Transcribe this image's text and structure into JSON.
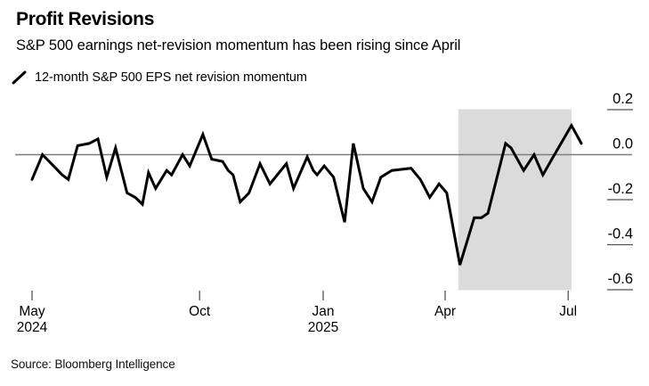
{
  "header": {
    "title": "Profit Revisions",
    "subtitle": "S&P 500 earnings net-revision momentum has been rising since April"
  },
  "legend": {
    "label": "12-month S&P 500 EPS net revision momentum"
  },
  "source": {
    "label": "Source: Bloomberg Intelligence"
  },
  "colors": {
    "background": "#ffffff",
    "line": "#000000",
    "zero_line": "#7d7d7d",
    "band": "#dbdbdb",
    "tick": "#555555",
    "text": "#000000"
  },
  "chart_data": {
    "type": "line",
    "title": "Profit Revisions",
    "xlabel": "",
    "ylabel": "",
    "grid": false,
    "legend_position": "top-left",
    "y_axis": {
      "side": "right",
      "range": [
        -0.65,
        0.25
      ],
      "ticks": [
        {
          "value": 0.2,
          "label": "0.2"
        },
        {
          "value": 0.0,
          "label": "0.0"
        },
        {
          "value": -0.2,
          "label": "-0.2"
        },
        {
          "value": -0.4,
          "label": "-0.4"
        },
        {
          "value": -0.6,
          "label": "-0.6"
        }
      ]
    },
    "x_axis": {
      "unit": "time (weekly, May 2024 - Jul 2025)",
      "ticks": [
        {
          "pos": 0.0,
          "label": "May",
          "year": "2024"
        },
        {
          "pos": 0.305,
          "label": "Oct",
          "year": ""
        },
        {
          "pos": 0.53,
          "label": "Jan",
          "year": "2025"
        },
        {
          "pos": 0.752,
          "label": "Apr",
          "year": ""
        },
        {
          "pos": 0.976,
          "label": "Jul",
          "year": ""
        }
      ]
    },
    "highlight_band": {
      "from": 0.776,
      "to": 0.982
    },
    "series": [
      {
        "name": "12-month S&P 500 EPS net revision momentum",
        "points": [
          [
            0.0,
            -0.11
          ],
          [
            0.019,
            0.0
          ],
          [
            0.039,
            -0.05
          ],
          [
            0.055,
            -0.09
          ],
          [
            0.066,
            -0.11
          ],
          [
            0.083,
            0.04
          ],
          [
            0.104,
            0.05
          ],
          [
            0.12,
            0.07
          ],
          [
            0.136,
            -0.1
          ],
          [
            0.152,
            0.03
          ],
          [
            0.173,
            -0.17
          ],
          [
            0.188,
            -0.19
          ],
          [
            0.201,
            -0.22
          ],
          [
            0.212,
            -0.08
          ],
          [
            0.225,
            -0.15
          ],
          [
            0.245,
            -0.07
          ],
          [
            0.254,
            -0.09
          ],
          [
            0.274,
            0.0
          ],
          [
            0.287,
            -0.05
          ],
          [
            0.311,
            0.09
          ],
          [
            0.327,
            -0.02
          ],
          [
            0.347,
            -0.03
          ],
          [
            0.357,
            -0.07
          ],
          [
            0.366,
            -0.09
          ],
          [
            0.379,
            -0.21
          ],
          [
            0.395,
            -0.17
          ],
          [
            0.415,
            -0.04
          ],
          [
            0.433,
            -0.13
          ],
          [
            0.463,
            -0.04
          ],
          [
            0.476,
            -0.15
          ],
          [
            0.501,
            -0.01
          ],
          [
            0.512,
            -0.07
          ],
          [
            0.519,
            -0.09
          ],
          [
            0.532,
            -0.05
          ],
          [
            0.549,
            -0.1
          ],
          [
            0.569,
            -0.3
          ],
          [
            0.585,
            0.05
          ],
          [
            0.603,
            -0.15
          ],
          [
            0.619,
            -0.21
          ],
          [
            0.635,
            -0.1
          ],
          [
            0.655,
            -0.07
          ],
          [
            0.69,
            -0.06
          ],
          [
            0.707,
            -0.11
          ],
          [
            0.724,
            -0.19
          ],
          [
            0.741,
            -0.13
          ],
          [
            0.755,
            -0.17
          ],
          [
            0.779,
            -0.49
          ],
          [
            0.805,
            -0.28
          ],
          [
            0.818,
            -0.28
          ],
          [
            0.83,
            -0.26
          ],
          [
            0.862,
            0.05
          ],
          [
            0.872,
            0.03
          ],
          [
            0.895,
            -0.07
          ],
          [
            0.914,
            0.0
          ],
          [
            0.93,
            -0.09
          ],
          [
            0.951,
            0.0
          ],
          [
            0.982,
            0.13
          ],
          [
            1.0,
            0.05
          ]
        ]
      }
    ]
  }
}
